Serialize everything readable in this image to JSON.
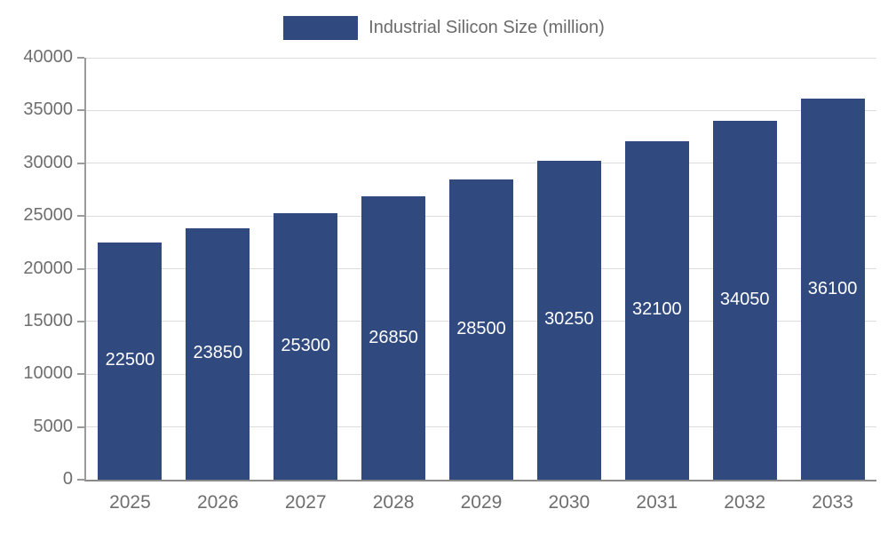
{
  "chart_data": {
    "type": "bar",
    "title": "Industrial Silicon Size (million)",
    "legend": {
      "label": "Industrial Silicon Size (million)",
      "position": "top-center"
    },
    "categories": [
      "2025",
      "2026",
      "2027",
      "2028",
      "2029",
      "2030",
      "2031",
      "2032",
      "2033"
    ],
    "series": [
      {
        "name": "Industrial Silicon Size (million)",
        "values": [
          22500,
          23850,
          25300,
          26850,
          28500,
          30250,
          32100,
          34050,
          36100
        ]
      }
    ],
    "data_labels": [
      "22500",
      "23850",
      "25300",
      "26850",
      "28500",
      "30250",
      "32100",
      "34050",
      "36100"
    ],
    "xlabel": "",
    "ylabel": "",
    "ylim": [
      0,
      40000
    ],
    "ytick_interval": 5000,
    "ytick_labels": [
      "0",
      "5000",
      "10000",
      "15000",
      "20000",
      "25000",
      "30000",
      "35000",
      "40000"
    ],
    "grid": true,
    "colors": {
      "bar": "#30497f",
      "data_label": "#ffffff",
      "gridline": "#dcdcdc",
      "tick_label": "#6e6e6e",
      "legend_text": "#6b6b6b"
    }
  }
}
